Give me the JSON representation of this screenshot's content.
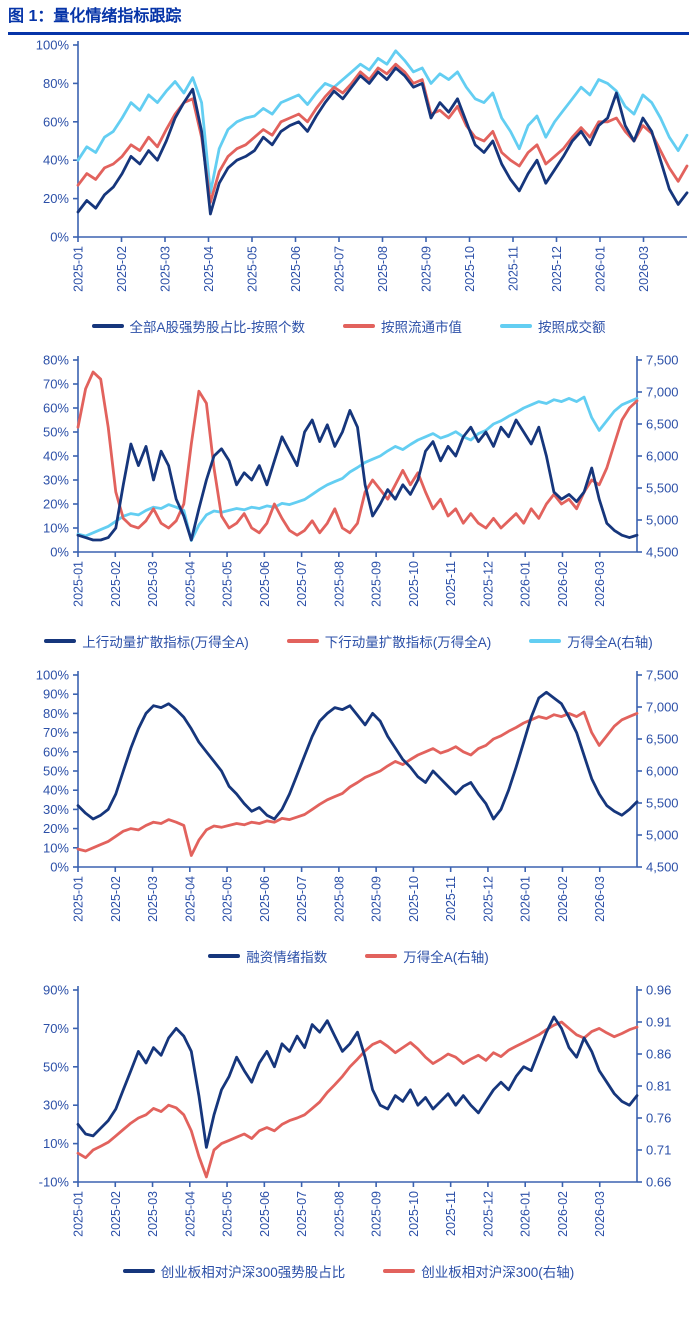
{
  "title": "图 1：量化情绪指标跟踪",
  "colors": {
    "navy": "#16367C",
    "coral": "#E2625D",
    "sky": "#63CEF2",
    "axis_line": "#3B62B0",
    "axis_text": "#2C50A8",
    "title_text": "#0634A8",
    "title_rule": "#0634A8",
    "background": "#FFFFFF"
  },
  "chart_data": [
    {
      "type": "line",
      "name": "strong-stock-ratio-chart",
      "grid": false,
      "legend_position": "bottom",
      "left_axis": {
        "min": 0,
        "max": 100,
        "tick_values": [
          100,
          80,
          60,
          40,
          20,
          0
        ],
        "tick_labels": [
          "100%",
          "80%",
          "60%",
          "40%",
          "20%",
          "0%"
        ]
      },
      "right_axis": null,
      "x_labels": [
        "2025-01",
        "2025-02",
        "2025-03",
        "2025-04",
        "2025-05",
        "2025-06",
        "2025-07",
        "2025-08",
        "2025-09",
        "2025-10",
        "2025-11",
        "2025-12",
        "2026-01",
        "2026-03"
      ],
      "series": [
        {
          "name": "全部A股强势股占比-按照个数",
          "color_key": "navy",
          "axis": "left",
          "values": [
            13,
            19,
            15,
            22,
            26,
            33,
            42,
            38,
            45,
            40,
            50,
            62,
            70,
            77,
            55,
            12,
            28,
            36,
            40,
            42,
            45,
            52,
            48,
            55,
            58,
            60,
            55,
            63,
            70,
            76,
            72,
            78,
            84,
            80,
            86,
            82,
            88,
            84,
            78,
            80,
            62,
            70,
            65,
            72,
            60,
            48,
            44,
            50,
            38,
            30,
            24,
            33,
            40,
            28,
            35,
            42,
            50,
            55,
            48,
            58,
            62,
            75,
            58,
            50,
            62,
            55,
            40,
            25,
            17,
            23
          ]
        },
        {
          "name": "按照流通市值",
          "color_key": "coral",
          "axis": "left",
          "values": [
            27,
            33,
            30,
            36,
            38,
            42,
            48,
            45,
            52,
            47,
            56,
            64,
            70,
            72,
            52,
            18,
            34,
            42,
            46,
            48,
            52,
            56,
            53,
            60,
            62,
            64,
            60,
            67,
            73,
            78,
            75,
            80,
            86,
            82,
            88,
            85,
            90,
            86,
            80,
            82,
            64,
            66,
            62,
            68,
            58,
            52,
            50,
            55,
            44,
            40,
            37,
            44,
            48,
            38,
            42,
            46,
            52,
            57,
            52,
            60,
            60,
            62,
            55,
            50,
            58,
            54,
            45,
            36,
            29,
            37
          ]
        },
        {
          "name": "按照成交额",
          "color_key": "sky",
          "axis": "left",
          "values": [
            40,
            47,
            44,
            52,
            55,
            62,
            70,
            66,
            74,
            70,
            76,
            81,
            75,
            83,
            70,
            23,
            46,
            56,
            60,
            62,
            63,
            67,
            64,
            70,
            72,
            74,
            69,
            75,
            80,
            78,
            82,
            86,
            90,
            87,
            93,
            90,
            97,
            92,
            86,
            88,
            80,
            85,
            82,
            86,
            78,
            72,
            70,
            75,
            62,
            55,
            46,
            58,
            63,
            52,
            60,
            66,
            72,
            78,
            74,
            82,
            80,
            76,
            68,
            64,
            74,
            70,
            62,
            52,
            45,
            53
          ]
        }
      ]
    },
    {
      "type": "line",
      "name": "momentum-diffusion-chart",
      "grid": false,
      "legend_position": "bottom",
      "left_axis": {
        "min": 0,
        "max": 80,
        "tick_values": [
          80,
          70,
          60,
          50,
          40,
          30,
          20,
          10,
          0
        ],
        "tick_labels": [
          "80%",
          "70%",
          "60%",
          "50%",
          "40%",
          "30%",
          "20%",
          "10%",
          "0%"
        ]
      },
      "right_axis": {
        "min": 4500,
        "max": 7500,
        "tick_values": [
          7500,
          7000,
          6500,
          6000,
          5500,
          5000,
          4500
        ],
        "tick_labels": [
          "7,500",
          "7,000",
          "6,500",
          "6,000",
          "5,500",
          "5,000",
          "4,500"
        ]
      },
      "x_labels": [
        "2025-01",
        "2025-02",
        "2025-03",
        "2025-04",
        "2025-05",
        "2025-06",
        "2025-07",
        "2025-08",
        "2025-09",
        "2025-10",
        "2025-11",
        "2025-12",
        "2026-01",
        "2026-02",
        "2026-03"
      ],
      "series": [
        {
          "name": "上行动量扩散指标(万得全A)",
          "color_key": "navy",
          "axis": "left",
          "values": [
            7,
            6,
            5,
            5,
            6,
            10,
            28,
            45,
            36,
            44,
            30,
            42,
            36,
            22,
            15,
            5,
            18,
            30,
            40,
            43,
            38,
            28,
            33,
            30,
            36,
            28,
            38,
            48,
            42,
            36,
            50,
            55,
            46,
            53,
            44,
            50,
            59,
            52,
            28,
            15,
            20,
            26,
            22,
            28,
            24,
            30,
            42,
            46,
            38,
            44,
            40,
            48,
            52,
            46,
            50,
            44,
            52,
            48,
            55,
            50,
            45,
            52,
            40,
            25,
            22,
            24,
            21,
            25,
            35,
            22,
            12,
            9,
            7,
            6,
            7
          ]
        },
        {
          "name": "下行动量扩散指标(万得全A)",
          "color_key": "coral",
          "axis": "left",
          "values": [
            52,
            68,
            75,
            72,
            52,
            25,
            14,
            11,
            10,
            13,
            18,
            12,
            10,
            13,
            20,
            45,
            67,
            62,
            35,
            15,
            10,
            12,
            16,
            10,
            8,
            12,
            20,
            14,
            9,
            7,
            9,
            13,
            8,
            12,
            18,
            10,
            8,
            12,
            25,
            30,
            26,
            22,
            28,
            34,
            28,
            33,
            25,
            18,
            22,
            15,
            18,
            12,
            16,
            12,
            10,
            14,
            10,
            13,
            16,
            12,
            18,
            14,
            20,
            24,
            20,
            22,
            18,
            25,
            30,
            28,
            35,
            45,
            55,
            60,
            63
          ]
        },
        {
          "name": "万得全A(右轴)",
          "color_key": "sky",
          "axis": "right",
          "values": [
            4780,
            4750,
            4800,
            4850,
            4900,
            4980,
            5060,
            5100,
            5080,
            5150,
            5200,
            5180,
            5240,
            5200,
            5150,
            4680,
            4920,
            5080,
            5140,
            5120,
            5150,
            5180,
            5160,
            5200,
            5180,
            5220,
            5200,
            5260,
            5240,
            5280,
            5320,
            5400,
            5480,
            5550,
            5600,
            5650,
            5750,
            5820,
            5900,
            5950,
            6000,
            6080,
            6150,
            6100,
            6180,
            6250,
            6300,
            6350,
            6280,
            6320,
            6380,
            6300,
            6250,
            6350,
            6400,
            6500,
            6550,
            6620,
            6680,
            6750,
            6800,
            6850,
            6820,
            6880,
            6850,
            6900,
            6850,
            6920,
            6600,
            6400,
            6550,
            6700,
            6800,
            6850,
            6900
          ]
        }
      ]
    },
    {
      "type": "line",
      "name": "financing-sentiment-chart",
      "grid": false,
      "legend_position": "bottom",
      "left_axis": {
        "min": 0,
        "max": 100,
        "tick_values": [
          100,
          90,
          80,
          70,
          60,
          50,
          40,
          30,
          20,
          10,
          0
        ],
        "tick_labels": [
          "100%",
          "90%",
          "80%",
          "70%",
          "60%",
          "50%",
          "40%",
          "30%",
          "20%",
          "10%",
          "0%"
        ]
      },
      "right_axis": {
        "min": 4500,
        "max": 7500,
        "tick_values": [
          7500,
          7000,
          6500,
          6000,
          5500,
          5000,
          4500
        ],
        "tick_labels": [
          "7,500",
          "7,000",
          "6,500",
          "6,000",
          "5,500",
          "5,000",
          "4,500"
        ]
      },
      "x_labels": [
        "2025-01",
        "2025-02",
        "2025-03",
        "2025-04",
        "2025-05",
        "2025-06",
        "2025-07",
        "2025-08",
        "2025-09",
        "2025-10",
        "2025-11",
        "2025-12",
        "2026-01",
        "2026-02",
        "2026-03"
      ],
      "series": [
        {
          "name": "融资情绪指数",
          "color_key": "navy",
          "axis": "left",
          "values": [
            32,
            28,
            25,
            27,
            30,
            38,
            50,
            62,
            72,
            80,
            84,
            83,
            85,
            82,
            78,
            72,
            65,
            60,
            55,
            50,
            42,
            38,
            33,
            29,
            31,
            27,
            25,
            30,
            38,
            48,
            58,
            68,
            76,
            80,
            83,
            82,
            84,
            79,
            74,
            80,
            76,
            68,
            62,
            56,
            52,
            47,
            44,
            50,
            46,
            42,
            38,
            42,
            44,
            38,
            33,
            25,
            30,
            40,
            52,
            65,
            78,
            88,
            91,
            88,
            85,
            78,
            70,
            58,
            46,
            38,
            32,
            29,
            27,
            30,
            34
          ]
        },
        {
          "name": "万得全A(右轴)",
          "color_key": "coral",
          "axis": "right",
          "values": [
            4780,
            4750,
            4800,
            4850,
            4900,
            4980,
            5060,
            5100,
            5080,
            5150,
            5200,
            5180,
            5240,
            5200,
            5150,
            4680,
            4920,
            5080,
            5140,
            5120,
            5150,
            5180,
            5160,
            5200,
            5180,
            5220,
            5200,
            5260,
            5240,
            5280,
            5320,
            5400,
            5480,
            5550,
            5600,
            5650,
            5750,
            5820,
            5900,
            5950,
            6000,
            6080,
            6150,
            6100,
            6180,
            6250,
            6300,
            6350,
            6280,
            6320,
            6380,
            6300,
            6250,
            6350,
            6400,
            6500,
            6550,
            6620,
            6680,
            6750,
            6800,
            6850,
            6820,
            6880,
            6850,
            6900,
            6850,
            6920,
            6600,
            6400,
            6550,
            6700,
            6800,
            6850,
            6900
          ]
        }
      ]
    },
    {
      "type": "line",
      "name": "chinext-relative-chart",
      "grid": false,
      "legend_position": "bottom",
      "left_axis": {
        "min": -10,
        "max": 90,
        "tick_values": [
          90,
          70,
          50,
          30,
          10,
          -10
        ],
        "tick_labels": [
          "90%",
          "70%",
          "50%",
          "30%",
          "10%",
          "-10%"
        ]
      },
      "right_axis": {
        "min": 0.66,
        "max": 0.96,
        "tick_values": [
          0.96,
          0.91,
          0.86,
          0.81,
          0.76,
          0.71,
          0.66
        ],
        "tick_labels": [
          "0.96",
          "0.91",
          "0.86",
          "0.81",
          "0.76",
          "0.71",
          "0.66"
        ]
      },
      "x_labels": [
        "2025-01",
        "2025-02",
        "2025-03",
        "2025-04",
        "2025-05",
        "2025-06",
        "2025-07",
        "2025-08",
        "2025-09",
        "2025-10",
        "2025-11",
        "2025-12",
        "2026-01",
        "2026-02",
        "2026-03"
      ],
      "series": [
        {
          "name": "创业板相对沪深300强势股占比",
          "color_key": "navy",
          "axis": "left",
          "values": [
            20,
            15,
            14,
            18,
            22,
            28,
            38,
            48,
            58,
            52,
            60,
            56,
            65,
            70,
            66,
            58,
            35,
            8,
            25,
            38,
            45,
            55,
            48,
            42,
            52,
            58,
            50,
            62,
            58,
            66,
            60,
            72,
            68,
            74,
            66,
            58,
            62,
            68,
            55,
            38,
            30,
            28,
            35,
            32,
            38,
            30,
            34,
            28,
            32,
            36,
            30,
            35,
            30,
            26,
            32,
            38,
            42,
            38,
            45,
            50,
            48,
            58,
            68,
            76,
            70,
            60,
            55,
            65,
            58,
            48,
            42,
            36,
            32,
            30,
            35
          ]
        },
        {
          "name": "创业板相对沪深300(右轴)",
          "color_key": "coral",
          "axis": "right",
          "values": [
            0.705,
            0.698,
            0.71,
            0.716,
            0.722,
            0.732,
            0.742,
            0.752,
            0.76,
            0.765,
            0.775,
            0.77,
            0.78,
            0.776,
            0.765,
            0.74,
            0.7,
            0.668,
            0.71,
            0.72,
            0.725,
            0.73,
            0.735,
            0.728,
            0.74,
            0.745,
            0.74,
            0.75,
            0.756,
            0.76,
            0.765,
            0.775,
            0.785,
            0.8,
            0.812,
            0.825,
            0.84,
            0.852,
            0.865,
            0.875,
            0.88,
            0.872,
            0.862,
            0.87,
            0.878,
            0.868,
            0.855,
            0.845,
            0.852,
            0.86,
            0.855,
            0.845,
            0.852,
            0.858,
            0.85,
            0.862,
            0.856,
            0.866,
            0.872,
            0.878,
            0.884,
            0.89,
            0.898,
            0.905,
            0.91,
            0.9,
            0.89,
            0.885,
            0.895,
            0.9,
            0.893,
            0.887,
            0.892,
            0.898,
            0.902
          ]
        }
      ]
    }
  ]
}
